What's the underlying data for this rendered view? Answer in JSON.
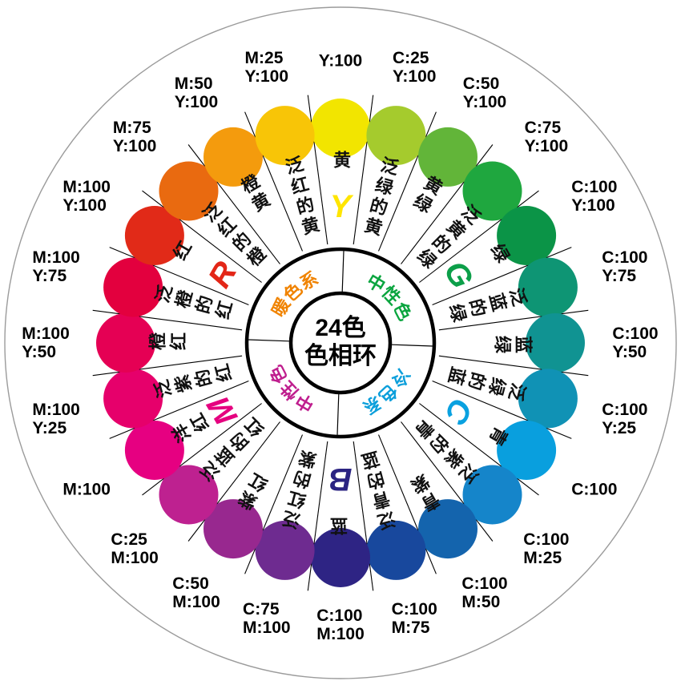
{
  "center": {
    "line1": "24色",
    "line2": "色相环"
  },
  "zone_labels": [
    {
      "text": "暖色系",
      "color": "#F08300",
      "angle": 317
    },
    {
      "text": "中性色",
      "color": "#0BA53F",
      "angle": 47
    },
    {
      "text": "冷色系",
      "color": "#0C9FDB",
      "angle": 137
    },
    {
      "text": "中性色",
      "color": "#BF1E8E",
      "angle": 227
    }
  ],
  "sectors": [
    {
      "angle": 0,
      "cmy_lines": [
        "Y:100"
      ],
      "hue_name": "黄",
      "letter": "Y",
      "letter_color": "#FFE500",
      "dot_color": "#F2E500"
    },
    {
      "angle": 15,
      "cmy_lines": [
        "C:25",
        "Y:100"
      ],
      "hue_name": "泛绿的黄",
      "dot_color": "#A5CB2D"
    },
    {
      "angle": 30,
      "cmy_lines": [
        "C:50",
        "Y:100"
      ],
      "hue_name": "黄绿",
      "dot_color": "#62B539"
    },
    {
      "angle": 45,
      "cmy_lines": [
        "C:75",
        "Y:100"
      ],
      "hue_name": "泛黄的绿",
      "dot_color": "#1FA73F"
    },
    {
      "angle": 60,
      "cmy_lines": [
        "C:100",
        "Y:100"
      ],
      "hue_name": "绿",
      "letter": "G",
      "letter_color": "#0C9F49",
      "dot_color": "#0B9447"
    },
    {
      "angle": 75,
      "cmy_lines": [
        "C:100",
        "Y:75"
      ],
      "hue_name": "泛蓝的绿",
      "dot_color": "#0E9574"
    },
    {
      "angle": 90,
      "cmy_lines": [
        "C:100",
        "Y:50"
      ],
      "hue_name": "蓝绿",
      "dot_color": "#109392"
    },
    {
      "angle": 105,
      "cmy_lines": [
        "C:100",
        "Y:25"
      ],
      "hue_name": "泛绿的蓝",
      "dot_color": "#1092B5"
    },
    {
      "angle": 120,
      "cmy_lines": [
        "C:100"
      ],
      "hue_name": "青",
      "letter": "C",
      "letter_color": "#09A1E0",
      "dot_color": "#099FDE"
    },
    {
      "angle": 135,
      "cmy_lines": [
        "C:100",
        "M:25"
      ],
      "hue_name": "泛紫的青",
      "dot_color": "#1585CA"
    },
    {
      "angle": 150,
      "cmy_lines": [
        "C:100",
        "M:50"
      ],
      "hue_name": "青紫",
      "dot_color": "#1464AD"
    },
    {
      "angle": 165,
      "cmy_lines": [
        "C:100",
        "M:75"
      ],
      "hue_name": "泛青的蓝",
      "dot_color": "#18489D"
    },
    {
      "angle": 180,
      "cmy_lines": [
        "C:100",
        "M:100"
      ],
      "hue_name": "蓝",
      "letter": "B",
      "letter_color": "#2B2382",
      "dot_color": "#2E2484"
    },
    {
      "angle": 195,
      "cmy_lines": [
        "C:75",
        "M:100"
      ],
      "hue_name": "泛红的紫",
      "dot_color": "#6E2B90"
    },
    {
      "angle": 210,
      "cmy_lines": [
        "C:50",
        "M:100"
      ],
      "hue_name": "紫红",
      "dot_color": "#98288F"
    },
    {
      "angle": 225,
      "cmy_lines": [
        "C:25",
        "M:100"
      ],
      "hue_name": "泛蓝的红",
      "dot_color": "#BE2190"
    },
    {
      "angle": 240,
      "cmy_lines": [
        "M:100"
      ],
      "hue_name": "洋红",
      "letter": "M",
      "letter_color": "#E5007F",
      "dot_color": "#E60081"
    },
    {
      "angle": 255,
      "cmy_lines": [
        "M:100",
        "Y:25"
      ],
      "hue_name": "泛紫的红",
      "dot_color": "#E6006B"
    },
    {
      "angle": 270,
      "cmy_lines": [
        "M:100",
        "Y:50"
      ],
      "hue_name": "橙红",
      "dot_color": "#E50054"
    },
    {
      "angle": 285,
      "cmy_lines": [
        "M:100",
        "Y:75"
      ],
      "hue_name": "泛橙的红",
      "dot_color": "#E3003E"
    },
    {
      "angle": 300,
      "cmy_lines": [
        "M:100",
        "Y:100"
      ],
      "hue_name": "红",
      "letter": "R",
      "letter_color": "#E32617",
      "dot_color": "#E12A18"
    },
    {
      "angle": 315,
      "cmy_lines": [
        "M:75",
        "Y:100"
      ],
      "hue_name": "泛红的橙",
      "dot_color": "#E96A10"
    },
    {
      "angle": 330,
      "cmy_lines": [
        "M:50",
        "Y:100"
      ],
      "hue_name": "橙黄",
      "dot_color": "#F49B0D"
    },
    {
      "angle": 345,
      "cmy_lines": [
        "M:25",
        "Y:100"
      ],
      "hue_name": "泛红的黄",
      "dot_color": "#F8C507"
    }
  ]
}
